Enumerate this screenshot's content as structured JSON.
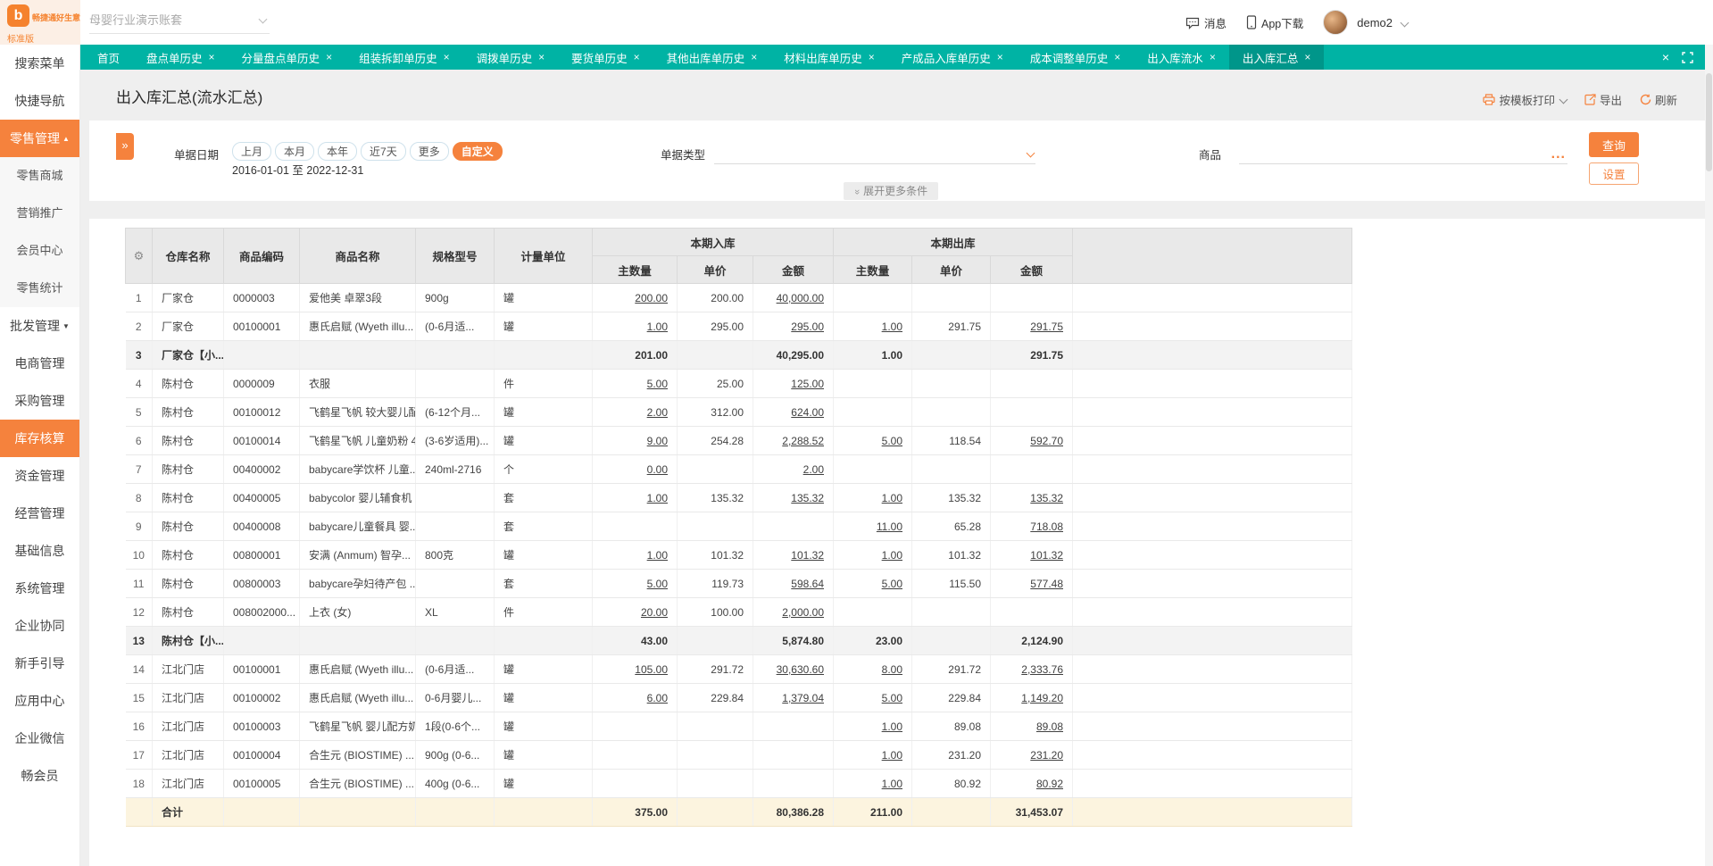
{
  "topbar": {
    "brand": "畅捷通好生意",
    "edition": "标准版",
    "account": "母婴行业演示账套",
    "messages": "消息",
    "app_download": "App下载",
    "user": "demo2"
  },
  "sidebar": [
    {
      "label": "搜索菜单"
    },
    {
      "label": "快捷导航"
    },
    {
      "label": "零售管理",
      "active": true,
      "arrow": "up"
    },
    {
      "label": "零售商城",
      "sub": true
    },
    {
      "label": "营销推广",
      "sub": true
    },
    {
      "label": "会员中心",
      "sub": true
    },
    {
      "label": "零售统计",
      "sub": true
    },
    {
      "label": "批发管理",
      "arrow": "down"
    },
    {
      "label": "电商管理"
    },
    {
      "label": "采购管理"
    },
    {
      "label": "库存核算",
      "active": true
    },
    {
      "label": "资金管理"
    },
    {
      "label": "经营管理"
    },
    {
      "label": "基础信息"
    },
    {
      "label": "系统管理"
    },
    {
      "label": "企业协同"
    },
    {
      "label": "新手引导"
    },
    {
      "label": "应用中心"
    },
    {
      "label": "企业微信"
    },
    {
      "label": "畅会员"
    }
  ],
  "tabs": [
    {
      "label": "首页",
      "closable": false
    },
    {
      "label": "盘点单历史",
      "closable": true
    },
    {
      "label": "分量盘点单历史",
      "closable": true
    },
    {
      "label": "组装拆卸单历史",
      "closable": true
    },
    {
      "label": "调拨单历史",
      "closable": true
    },
    {
      "label": "要货单历史",
      "closable": true
    },
    {
      "label": "其他出库单历史",
      "closable": true
    },
    {
      "label": "材料出库单历史",
      "closable": true
    },
    {
      "label": "产成品入库单历史",
      "closable": true
    },
    {
      "label": "成本调整单历史",
      "closable": true
    },
    {
      "label": "出入库流水",
      "closable": true
    },
    {
      "label": "出入库汇总",
      "closable": true,
      "active": true
    }
  ],
  "page": {
    "title": "出入库汇总(流水汇总)",
    "toolbar": {
      "print": "按模板打印",
      "export": "导出",
      "refresh": "刷新"
    }
  },
  "filters": {
    "date_label": "单据日期",
    "date_pills": [
      "上月",
      "本月",
      "本年",
      "近7天",
      "更多"
    ],
    "date_custom": "自定义",
    "date_range": "2016-01-01 至 2022-12-31",
    "doc_type_label": "单据类型",
    "product_label": "商品",
    "query": "查询",
    "settings": "设置",
    "expand_more": "展开更多条件"
  },
  "table": {
    "fixed_headers": [
      "仓库名称",
      "商品编码",
      "商品名称",
      "规格型号",
      "计量单位"
    ],
    "groups": [
      {
        "label": "本期入库",
        "cols": [
          "主数量",
          "单价",
          "金额"
        ]
      },
      {
        "label": "本期出库",
        "cols": [
          "主数量",
          "单价",
          "金额"
        ]
      }
    ],
    "rows": [
      {
        "n": "1",
        "warehouse": "厂家仓",
        "code": "0000003",
        "name": "爱他美 卓翠3段",
        "spec": "900g",
        "unit": "罐",
        "in_qty": "200.00",
        "in_price": "200.00",
        "in_amt": "40,000.00",
        "out_qty": "",
        "out_price": "",
        "out_amt": "",
        "type": "data"
      },
      {
        "n": "2",
        "warehouse": "厂家仓",
        "code": "00100001",
        "name": "惠氏启赋 (Wyeth illu...",
        "spec": "(0-6月适...",
        "unit": "罐",
        "in_qty": "1.00",
        "in_price": "295.00",
        "in_amt": "295.00",
        "out_qty": "1.00",
        "out_price": "291.75",
        "out_amt": "291.75",
        "type": "data"
      },
      {
        "n": "3",
        "warehouse": "厂家仓【小...",
        "code": "",
        "name": "",
        "spec": "",
        "unit": "",
        "in_qty": "201.00",
        "in_price": "",
        "in_amt": "40,295.00",
        "out_qty": "1.00",
        "out_price": "",
        "out_amt": "291.75",
        "type": "summary"
      },
      {
        "n": "4",
        "warehouse": "陈村仓",
        "code": "0000009",
        "name": "衣服",
        "spec": "",
        "unit": "件",
        "in_qty": "5.00",
        "in_price": "25.00",
        "in_amt": "125.00",
        "out_qty": "",
        "out_price": "",
        "out_amt": "",
        "type": "data"
      },
      {
        "n": "5",
        "warehouse": "陈村仓",
        "code": "00100012",
        "name": "飞鹤星飞帆 较大婴儿配...",
        "spec": "(6-12个月...",
        "unit": "罐",
        "in_qty": "2.00",
        "in_price": "312.00",
        "in_amt": "624.00",
        "out_qty": "",
        "out_price": "",
        "out_amt": "",
        "type": "data"
      },
      {
        "n": "6",
        "warehouse": "陈村仓",
        "code": "00100014",
        "name": "飞鹤星飞帆 儿童奶粉 4...",
        "spec": "(3-6岁适用)...",
        "unit": "罐",
        "in_qty": "9.00",
        "in_price": "254.28",
        "in_amt": "2,288.52",
        "out_qty": "5.00",
        "out_price": "118.54",
        "out_amt": "592.70",
        "type": "data"
      },
      {
        "n": "7",
        "warehouse": "陈村仓",
        "code": "00400002",
        "name": "babycare学饮杯 儿童...",
        "spec": "240ml-2716",
        "unit": "个",
        "in_qty": "0.00",
        "in_price": "",
        "in_amt": "2.00",
        "out_qty": "",
        "out_price": "",
        "out_amt": "",
        "type": "data"
      },
      {
        "n": "8",
        "warehouse": "陈村仓",
        "code": "00400005",
        "name": "babycolor 婴儿辅食机 ...",
        "spec": "",
        "unit": "套",
        "in_qty": "1.00",
        "in_price": "135.32",
        "in_amt": "135.32",
        "out_qty": "1.00",
        "out_price": "135.32",
        "out_amt": "135.32",
        "type": "data"
      },
      {
        "n": "9",
        "warehouse": "陈村仓",
        "code": "00400008",
        "name": "babycare儿童餐具 婴...",
        "spec": "",
        "unit": "套",
        "in_qty": "",
        "in_price": "",
        "in_amt": "",
        "out_qty": "11.00",
        "out_price": "65.28",
        "out_amt": "718.08",
        "type": "data"
      },
      {
        "n": "10",
        "warehouse": "陈村仓",
        "code": "00800001",
        "name": "安满 (Anmum) 智孕...",
        "spec": "800克",
        "unit": "罐",
        "in_qty": "1.00",
        "in_price": "101.32",
        "in_amt": "101.32",
        "out_qty": "1.00",
        "out_price": "101.32",
        "out_amt": "101.32",
        "type": "data"
      },
      {
        "n": "11",
        "warehouse": "陈村仓",
        "code": "00800003",
        "name": "babycare孕妇待产包 ...",
        "spec": "",
        "unit": "套",
        "in_qty": "5.00",
        "in_price": "119.73",
        "in_amt": "598.64",
        "out_qty": "5.00",
        "out_price": "115.50",
        "out_amt": "577.48",
        "type": "data"
      },
      {
        "n": "12",
        "warehouse": "陈村仓",
        "code": "008002000...",
        "name": "上衣 (女)",
        "spec": "XL",
        "unit": "件",
        "in_qty": "20.00",
        "in_price": "100.00",
        "in_amt": "2,000.00",
        "out_qty": "",
        "out_price": "",
        "out_amt": "",
        "type": "data"
      },
      {
        "n": "13",
        "warehouse": "陈村仓【小...",
        "code": "",
        "name": "",
        "spec": "",
        "unit": "",
        "in_qty": "43.00",
        "in_price": "",
        "in_amt": "5,874.80",
        "out_qty": "23.00",
        "out_price": "",
        "out_amt": "2,124.90",
        "type": "summary"
      },
      {
        "n": "14",
        "warehouse": "江北门店",
        "code": "00100001",
        "name": "惠氏启赋 (Wyeth illu...",
        "spec": "(0-6月适...",
        "unit": "罐",
        "in_qty": "105.00",
        "in_price": "291.72",
        "in_amt": "30,630.60",
        "out_qty": "8.00",
        "out_price": "291.72",
        "out_amt": "2,333.76",
        "type": "data"
      },
      {
        "n": "15",
        "warehouse": "江北门店",
        "code": "00100002",
        "name": "惠氏启赋 (Wyeth illu...",
        "spec": "0-6月婴儿...",
        "unit": "罐",
        "in_qty": "6.00",
        "in_price": "229.84",
        "in_amt": "1,379.04",
        "out_qty": "5.00",
        "out_price": "229.84",
        "out_amt": "1,149.20",
        "type": "data"
      },
      {
        "n": "16",
        "warehouse": "江北门店",
        "code": "00100003",
        "name": "飞鹤星飞帆 婴儿配方奶...",
        "spec": "1段(0-6个...",
        "unit": "罐",
        "in_qty": "",
        "in_price": "",
        "in_amt": "",
        "out_qty": "1.00",
        "out_price": "89.08",
        "out_amt": "89.08",
        "type": "data"
      },
      {
        "n": "17",
        "warehouse": "江北门店",
        "code": "00100004",
        "name": "合生元 (BIOSTIME) ...",
        "spec": "900g (0-6...",
        "unit": "罐",
        "in_qty": "",
        "in_price": "",
        "in_amt": "",
        "out_qty": "1.00",
        "out_price": "231.20",
        "out_amt": "231.20",
        "type": "data"
      },
      {
        "n": "18",
        "warehouse": "江北门店",
        "code": "00100005",
        "name": "合生元 (BIOSTIME) ...",
        "spec": "400g (0-6...",
        "unit": "罐",
        "in_qty": "",
        "in_price": "",
        "in_amt": "",
        "out_qty": "1.00",
        "out_price": "80.92",
        "out_amt": "80.92",
        "type": "data"
      }
    ],
    "total": {
      "label": "合计",
      "in_qty": "375.00",
      "in_amt": "80,386.28",
      "out_qty": "211.00",
      "out_amt": "31,453.07"
    }
  },
  "colors": {
    "teal": "#00b3a4",
    "teal_dark": "#00968a",
    "orange": "#f5823d",
    "total_row_bg": "#fcf4df"
  }
}
